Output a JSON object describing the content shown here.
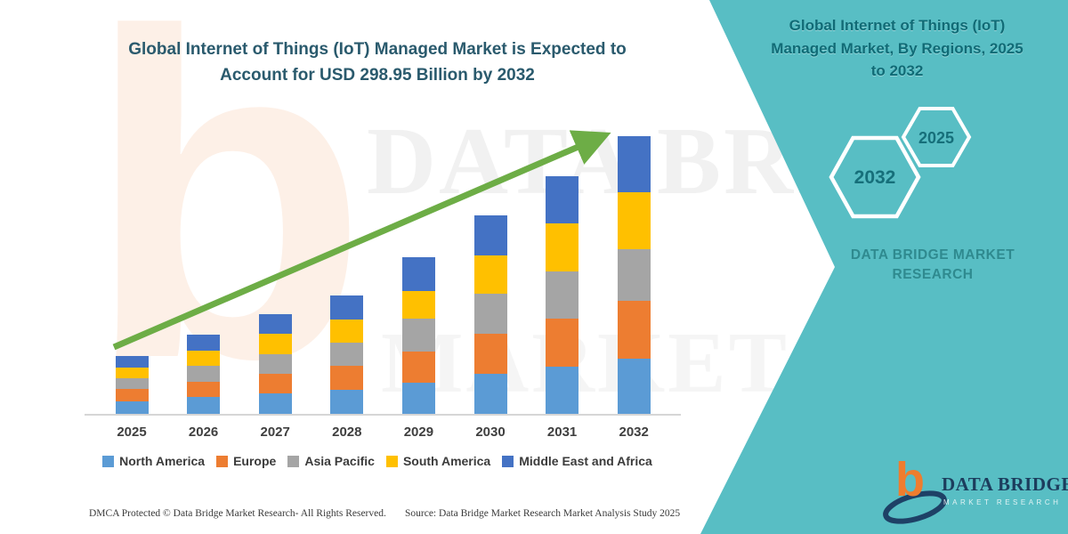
{
  "main": {
    "title_line1": "Global Internet of Things (IoT) Managed Market is Expected to",
    "title_line2": "Account for USD 298.95 Billion by 2032",
    "footer_left": "DMCA Protected © Data Bridge Market Research- All Rights Reserved.",
    "footer_source": "Source: Data Bridge Market Research Market Analysis Study 2025",
    "watermark_row1": "DATA BRI",
    "watermark_row2": "MARKET RESE",
    "watermark_b": "b"
  },
  "sidebar": {
    "heading_lines": {
      "0": "Global Internet of Things (IoT)",
      "1": "Managed Market, By Regions, 2025",
      "2": "to 2032"
    },
    "hex_large_label": "2032",
    "hex_small_label": "2025",
    "brand_line1": "DATA BRIDGE MARKET",
    "brand_line2": "RESEARCH",
    "logo": {
      "b": "b",
      "name": "DATA BRIDGE",
      "tagline": "MARKET RESEARCH"
    }
  },
  "colors": {
    "panel_teal": "#58bec4",
    "panel_text_teal": "#106b76",
    "title_color": "#2a5a6d",
    "arrow_green": "#6dad46",
    "logo_orange": "#ee7d2e",
    "logo_navy": "#1c3d5d"
  },
  "chart_data": {
    "type": "bar",
    "stacked": true,
    "title": "Global Internet of Things (IoT) Managed Market is Expected to Account for USD 298.95 Billion by 2032",
    "value_unit": "USD Billion",
    "categories": [
      "2025",
      "2026",
      "2027",
      "2028",
      "2029",
      "2030",
      "2031",
      "2032"
    ],
    "series": [
      {
        "name": "North America",
        "color": "#5B9BD5",
        "values": [
          13.5,
          18.0,
          22.0,
          26.0,
          33.5,
          43.0,
          51.0,
          59.4
        ]
      },
      {
        "name": "Europe",
        "color": "#ED7D31",
        "values": [
          13.0,
          17.0,
          21.5,
          25.5,
          33.5,
          43.0,
          51.5,
          62.3
        ]
      },
      {
        "name": "Asia Pacific",
        "color": "#A5A5A5",
        "values": [
          11.5,
          16.5,
          21.0,
          25.0,
          35.2,
          43.0,
          51.0,
          55.6
        ]
      },
      {
        "name": "South America",
        "color": "#FFC000",
        "values": [
          12.0,
          17.0,
          21.5,
          25.5,
          30.4,
          42.0,
          51.5,
          61.3
        ]
      },
      {
        "name": "Middle East and Africa",
        "color": "#4472C4",
        "values": [
          12.3,
          16.8,
          21.3,
          25.4,
          36.1,
          42.7,
          50.9,
          60.35
        ]
      }
    ],
    "totals": [
      62.3,
      85.3,
      107.3,
      127.4,
      168.7,
      213.7,
      255.9,
      298.95
    ],
    "xlabel": "",
    "ylabel": "",
    "ylim": [
      0,
      313
    ],
    "grid": false,
    "legend_position": "bottom",
    "trend_arrow": true
  }
}
